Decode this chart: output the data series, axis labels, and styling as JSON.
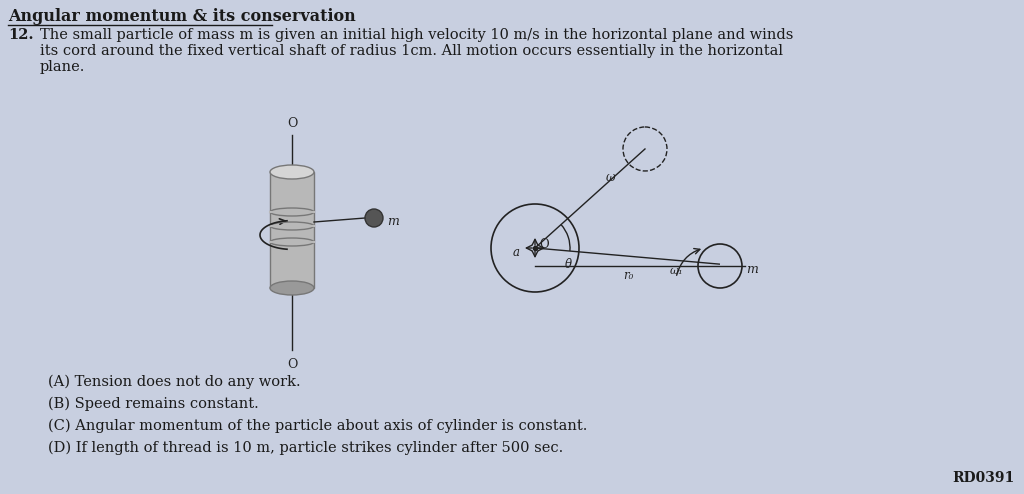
{
  "bg_color": "#c8cfe0",
  "title": "Angular momentum & its conservation",
  "problem_number": "12.",
  "problem_text_lines": [
    "The small particle of mass m is given an initial high velocity 10 m/s in the horizontal plane and winds",
    "its cord around the fixed vertical shaft of radius 1cm. All motion occurs essentially in the horizontal",
    "plane."
  ],
  "options": [
    "(A) Tension does not do any work.",
    "(B) Speed remains constant.",
    "(C) Angular momentum of the particle about axis of cylinder is constant.",
    "(D) If length of thread is 10 m, particle strikes cylinder after 500 sec."
  ],
  "footer": "RD0391",
  "text_color": "#1a1a1a",
  "diagram_color": "#222222",
  "cylinder_color": "#b8b8b8",
  "cylinder_dark": "#777777"
}
